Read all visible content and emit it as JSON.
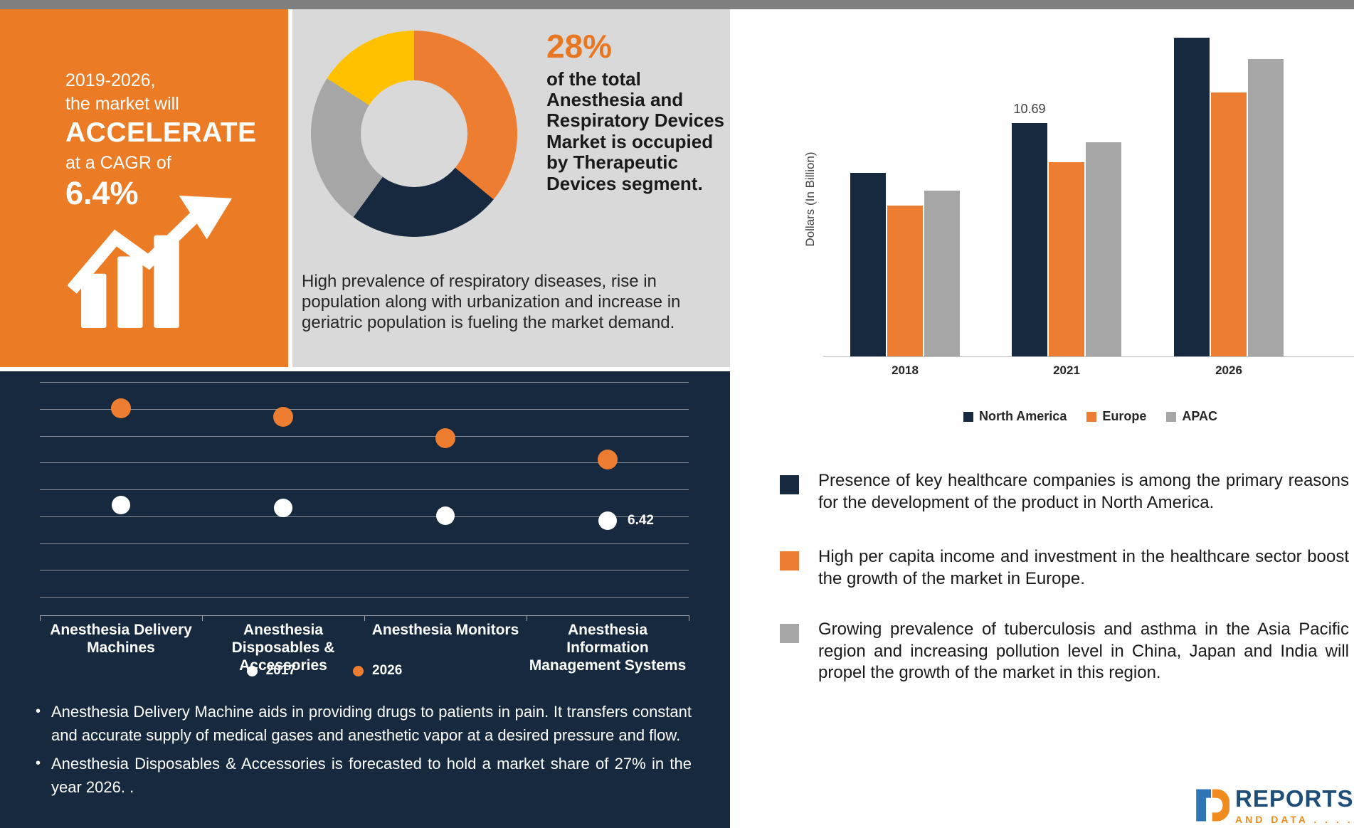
{
  "theme": {
    "orange": "#EB7B25",
    "accent_orange": "#ED7D31",
    "navy": "#16293F",
    "panel_gray": "#D9D9D9",
    "bar_gray": "#A6A6A6",
    "yellow": "#FFC100",
    "top_strip_gray": "#7F7F7F",
    "white": "#FFFFFF"
  },
  "accelerate_panel": {
    "period": "2019-2026,",
    "subtitle": "the market will",
    "headline": "ACCELERATE",
    "cagr_label": "at a CAGR of",
    "cagr_value": "6.4%"
  },
  "segment_panel": {
    "stat": "28%",
    "stat_caption": "of the total Anesthesia and Respiratory Devices Market is occupied by Therapeutic Devices segment.",
    "body": "High prevalence of respiratory diseases, rise in population along with urbanization and increase in geriatric population is fueling the market demand."
  },
  "product_panel": {
    "bullets": [
      "Anesthesia Delivery Machine aids in providing drugs to patients in pain. It transfers constant and accurate supply of medical gases and anesthetic vapor at a desired pressure and flow.",
      "Anesthesia Disposables & Accessories is forecasted to hold a market share of 27% in the year 2026. ."
    ]
  },
  "regional_panel": {
    "bullets": [
      {
        "color": "#16293F",
        "text": "Presence of key healthcare companies is among the primary reasons for the development of the product in North America."
      },
      {
        "color": "#ED7D31",
        "text": "High per capita income and investment in the healthcare sector boost the growth of the market in Europe."
      },
      {
        "color": "#A6A6A6",
        "text": "Growing prevalence of tuberculosis and asthma in the Asia Pacific region and increasing pollution level in China, Japan and India will propel the growth of the market in this region."
      }
    ]
  },
  "logo": {
    "name": "REPORTS",
    "tagline": "AND DATA . . . ."
  },
  "chart_data": [
    {
      "id": "segment_donut",
      "type": "pie",
      "title": "28% of the total Anesthesia and Respiratory Devices Market is occupied by Therapeutic Devices segment.",
      "segments": [
        {
          "label": "orange-segment",
          "value": 36,
          "color": "#ED7D31"
        },
        {
          "label": "navy-segment",
          "value": 24,
          "color": "#16293F"
        },
        {
          "label": "gray-segment",
          "value": 24,
          "color": "#A6A6A6"
        },
        {
          "label": "yellow-segment",
          "value": 16,
          "color": "#FFC100"
        }
      ],
      "legend": "none"
    },
    {
      "id": "product_dot_plot",
      "type": "scatter",
      "categories": [
        "Anesthesia Delivery Machines",
        "Anesthesia Disposables & Accessories",
        "Anesthesia Monitors",
        "Anesthesia Information Management Systems"
      ],
      "series": [
        {
          "name": "2017",
          "color": "#FFFFFF",
          "values": [
            7.0,
            6.9,
            6.6,
            6.42
          ]
        },
        {
          "name": "2026",
          "color": "#ED7D31",
          "values": [
            10.6,
            10.3,
            9.5,
            8.7
          ]
        }
      ],
      "data_labels": [
        {
          "series": "2017",
          "category_index": 3,
          "text": "6.42"
        }
      ],
      "grid": true,
      "legend_position": "bottom"
    },
    {
      "id": "regional_bar_chart",
      "type": "bar",
      "categories": [
        "2018",
        "2021",
        "2026"
      ],
      "series": [
        {
          "name": "North America",
          "color": "#16293F",
          "values": [
            8.4,
            10.69,
            14.6
          ]
        },
        {
          "name": "Europe",
          "color": "#ED7D31",
          "values": [
            6.9,
            8.9,
            12.1
          ]
        },
        {
          "name": "APAC",
          "color": "#A6A6A6",
          "values": [
            7.6,
            9.8,
            13.6
          ]
        }
      ],
      "data_labels": [
        {
          "series": "North America",
          "category_index": 1,
          "text": "10.69"
        }
      ],
      "xlabel": "",
      "ylabel": "Dollars (In Billion)",
      "ylim": [
        0,
        15
      ],
      "grid": false,
      "legend_position": "bottom"
    }
  ]
}
